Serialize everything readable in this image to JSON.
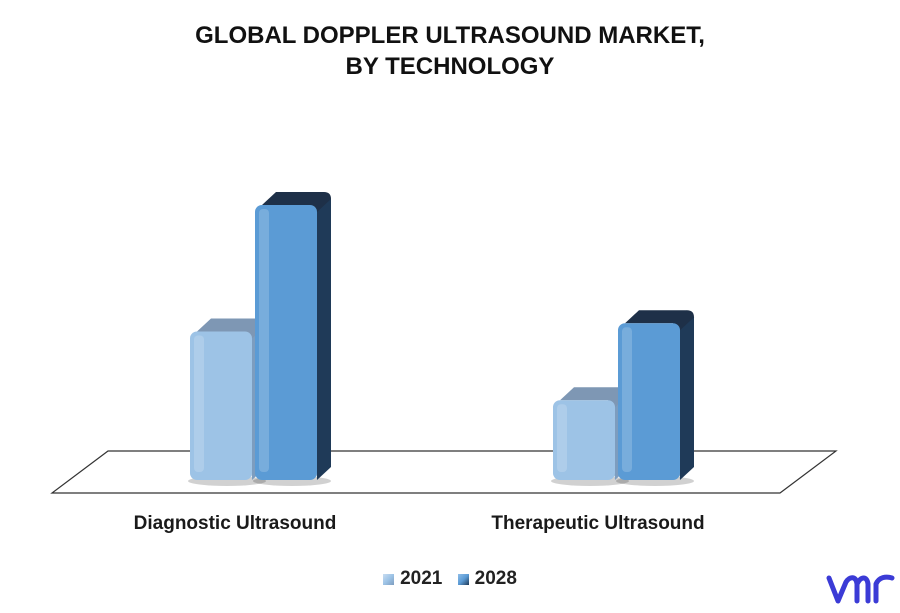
{
  "chart_data": {
    "type": "bar",
    "title_lines": [
      "GLOBAL DOPPLER ULTRASOUND MARKET,",
      "BY TECHNOLOGY"
    ],
    "categories": [
      "Diagnostic Ultrasound",
      "Therapeutic Ultrasound"
    ],
    "series": [
      {
        "name": "2021",
        "values": [
          5.4,
          2.9
        ]
      },
      {
        "name": "2028",
        "values": [
          10.0,
          5.7
        ]
      }
    ],
    "ylim": [
      0,
      10.5
    ],
    "xlabel": "",
    "ylabel": "",
    "grid": false,
    "legend_position": "bottom",
    "colors": {
      "2021": {
        "front": "#9dc3e6",
        "top": "#7e97b4",
        "side": "#7d9dbf"
      },
      "2028": {
        "front": "#5b9bd5",
        "top": "#1e3048",
        "side": "#1f3a58"
      }
    }
  },
  "logo": {
    "text": "vmr",
    "color": "#3b3bd6"
  }
}
